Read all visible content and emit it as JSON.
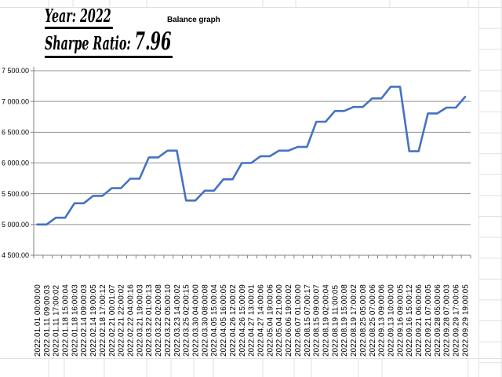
{
  "header": {
    "year_title": "Year: 2022",
    "sharpe_label": "Sharpe Ratio:",
    "sharpe_value": "7.96"
  },
  "colors": {
    "line": "#4472C4",
    "gridline": "#919191",
    "axis": "#808080",
    "sheet_line": "#e1e1e1",
    "text": "#000000"
  },
  "chart_data": {
    "type": "line",
    "title": "Balance graph",
    "x": [
      "2022.01.01 00:00:00",
      "2022.01.11 09:00:03",
      "2022.01.11 17:00:02",
      "2022.01.18 15:00:04",
      "2022.01.18 16:00:03",
      "2022.02.14 09:00:03",
      "2022.02.14 19:00:05",
      "2022.02.18 17:00:12",
      "2022.02.21 00:01:07",
      "2022.02.21 22:00:02",
      "2022.02.22 04:00:16",
      "2022.03.21 19:00:03",
      "2022.03.22 01:00:13",
      "2022.03.22 02:00:08",
      "2022.03.22 05:00:10",
      "2022.03.23 14:00:02",
      "2022.03.25 02:00:15",
      "2022.03.30 04:00:00",
      "2022.03.30 08:00:08",
      "2022.04.05 15:00:04",
      "2022.04.05 16:00:05",
      "2022.04.26 12:00:02",
      "2022.04.26 15:00:09",
      "2022.04.27 13:00:01",
      "2022.04.27 14:00:06",
      "2022.05.04 19:00:06",
      "2022.05.04 21:00:00",
      "2022.06.06 19:00:02",
      "2022.06.07 01:00:00",
      "2022.08.15 07:00:17",
      "2022.08.15 09:00:07",
      "2022.08.19 02:00:04",
      "2022.08.19 11:00:05",
      "2022.08.19 15:00:08",
      "2022.08.19 17:00:02",
      "2022.08.25 05:00:08",
      "2022.08.25 07:00:06",
      "2022.09.13 09:00:06",
      "2022.09.13 10:00:00",
      "2022.09.16 09:00:05",
      "2022.09.16 15:00:12",
      "2022.09.21 06:00:06",
      "2022.09.21 07:00:05",
      "2022.09.28 05:00:06",
      "2022.09.28 07:00:03",
      "2022.09.29 17:00:06",
      "2022.09.29 19:00:05"
    ],
    "values": [
      5000,
      5000,
      5110,
      5110,
      5345,
      5345,
      5465,
      5465,
      5590,
      5590,
      5745,
      5745,
      6090,
      6090,
      6200,
      6200,
      5390,
      5390,
      5550,
      5550,
      5735,
      5735,
      6000,
      6000,
      6110,
      6110,
      6200,
      6200,
      6260,
      6260,
      6670,
      6670,
      6845,
      6845,
      6910,
      6910,
      7050,
      7050,
      7240,
      7240,
      6190,
      6190,
      6805,
      6805,
      6900,
      6900,
      7075
    ],
    "ylim": [
      4500,
      7500
    ],
    "ytick_step": 500,
    "ytick_labels": [
      "4 500.00",
      "5 000.00",
      "5 500.00",
      "6 000.00",
      "6 500.00",
      "7 000.00",
      "7 500.00"
    ],
    "grid": true,
    "legend": false,
    "xlabel": "",
    "ylabel": ""
  }
}
